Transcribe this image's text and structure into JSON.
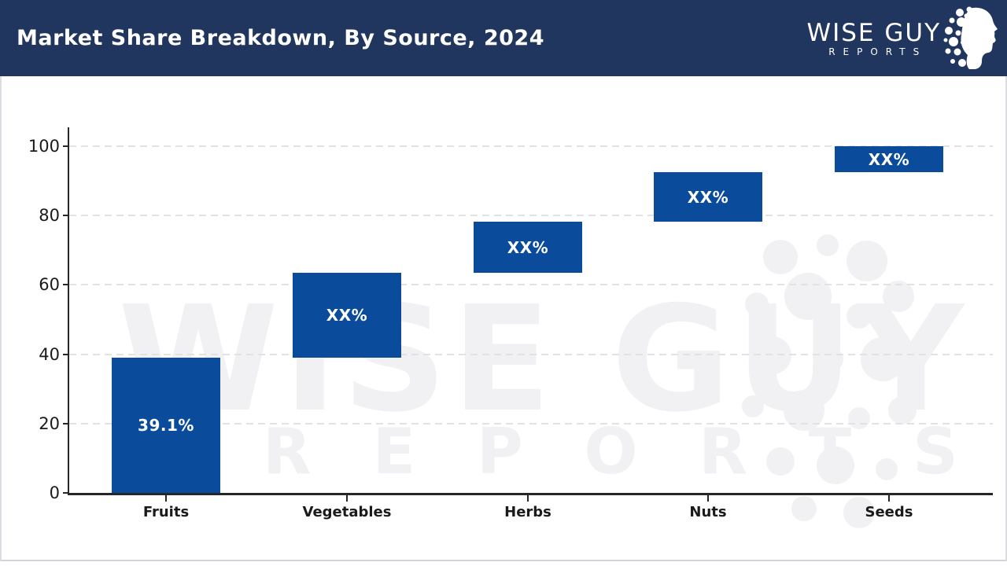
{
  "header": {
    "title": "Market Share Breakdown, By Source, 2024"
  },
  "logo": {
    "line1": "WISE GUY",
    "line2": "REPORTS"
  },
  "watermark": {
    "line1": "WISE GUY",
    "line2": "R E P O R T S"
  },
  "colors": {
    "header_bg": "#21365e",
    "bar": "#0b4b9c",
    "axis": "#262626",
    "gridline": "#e2e2e6",
    "watermark": "#f1f1f4"
  },
  "chart_data": {
    "type": "bar",
    "subtype": "waterfall",
    "title": "Market Share Breakdown, By Source, 2024",
    "categories": [
      "Fruits",
      "Vegetables",
      "Herbs",
      "Nuts",
      "Seeds"
    ],
    "segments": [
      {
        "category": "Fruits",
        "start": 0,
        "end": 39.1,
        "label": "39.1%"
      },
      {
        "category": "Vegetables",
        "start": 39.1,
        "end": 63.5,
        "label": "XX%"
      },
      {
        "category": "Herbs",
        "start": 63.5,
        "end": 78.2,
        "label": "XX%"
      },
      {
        "category": "Nuts",
        "start": 78.2,
        "end": 92.5,
        "label": "XX%"
      },
      {
        "category": "Seeds",
        "start": 92.5,
        "end": 100,
        "label": "XX%"
      }
    ],
    "xlabel": "",
    "ylabel": "",
    "yticks": [
      0,
      20,
      40,
      60,
      80,
      100
    ],
    "ylim": [
      0,
      105
    ],
    "grid": "horizontal-dashed",
    "legend": "none",
    "bar_color": "#0b4b9c"
  }
}
